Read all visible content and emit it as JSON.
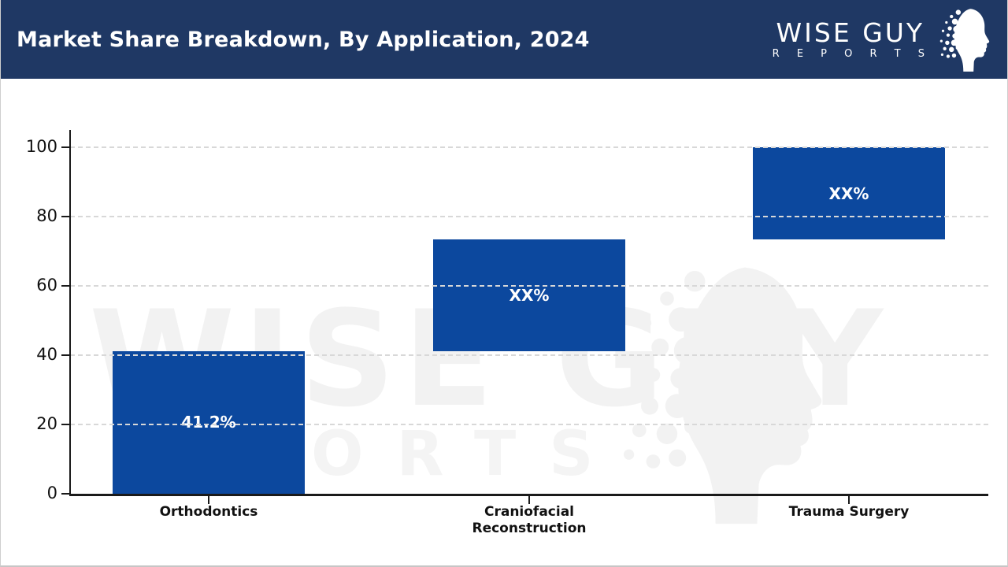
{
  "header": {
    "title": "Market Share Breakdown, By Application, 2024",
    "logo": {
      "line1": "WISE GUY",
      "line2": "R E P O R T S"
    }
  },
  "watermark": {
    "line1": "WISE GUY",
    "line2": "PORTS"
  },
  "colors": {
    "header_bg": "#1f3864",
    "bar": "#0c489e",
    "bar_label": "#ffffff",
    "gridline": "#d8d8d8",
    "axis": "#1a1a1a",
    "watermark": "#f2f2f2"
  },
  "chart_data": {
    "type": "bar",
    "subtype": "stacked-waterfall",
    "title": "Market Share Breakdown, By Application, 2024",
    "xlabel": "",
    "ylabel": "",
    "ylim": [
      0,
      100
    ],
    "yticks": [
      0,
      20,
      40,
      60,
      80,
      100
    ],
    "grid": true,
    "categories": [
      "Orthodontics",
      "Craniofacial Reconstruction",
      "Trauma Surgery"
    ],
    "segments": [
      {
        "category": "Orthodontics",
        "start": 0,
        "end": 41.2,
        "label": "41.2%"
      },
      {
        "category": "Craniofacial Reconstruction",
        "start": 41.2,
        "end": 73.4,
        "label": "XX%"
      },
      {
        "category": "Trauma Surgery",
        "start": 73.4,
        "end": 100,
        "label": "XX%"
      }
    ],
    "bar_color": "#0c489e",
    "label_color": "#ffffff"
  }
}
